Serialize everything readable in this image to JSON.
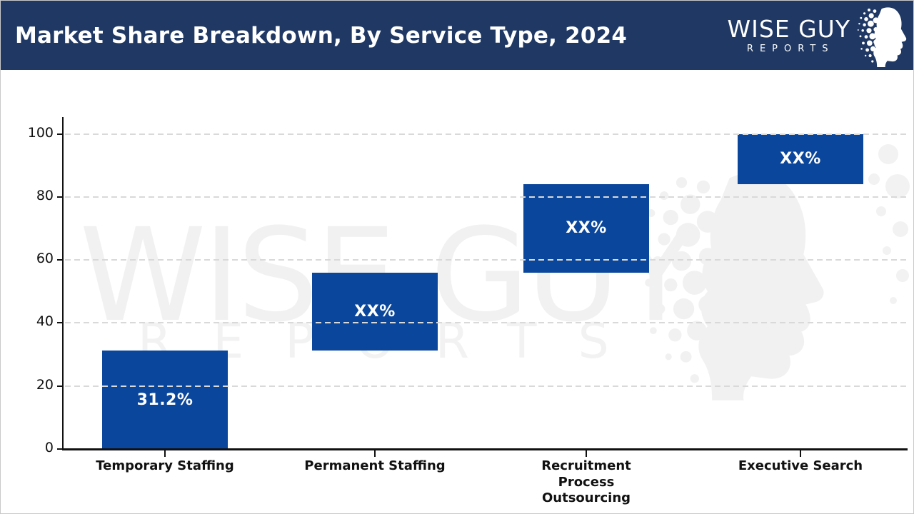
{
  "header": {
    "title": "Market Share Breakdown, By Service Type, 2024",
    "logo": {
      "wordmark": "WISE GUY",
      "subtext": "REPORTS"
    }
  },
  "watermark": {
    "wordmark": "WISE GUY",
    "subtext": "REPORTS"
  },
  "chart_data": {
    "type": "bar",
    "subtype": "waterfall",
    "title": "Market Share Breakdown, By Service Type, 2024",
    "categories": [
      "Temporary Staffing",
      "Permanent Staffing",
      "Recruitment\nProcess\nOutsourcing",
      "Executive Search"
    ],
    "segments": [
      {
        "category": "Temporary Staffing",
        "start": 0,
        "end": 31.2,
        "label": "31.2%"
      },
      {
        "category": "Permanent Staffing",
        "start": 31.2,
        "end": 56,
        "label": "XX%"
      },
      {
        "category": "Recruitment Process Outsourcing",
        "start": 56,
        "end": 84,
        "label": "XX%"
      },
      {
        "category": "Executive Search",
        "start": 84,
        "end": 100,
        "label": "XX%"
      }
    ],
    "values_visible": [
      "31.2%",
      "XX%",
      "XX%",
      "XX%"
    ],
    "xlabel": "",
    "ylabel": "",
    "ylim": [
      0,
      100
    ],
    "yticks": [
      0,
      20,
      40,
      60,
      80,
      100
    ],
    "grid": "horizontal dashed",
    "legend": "none",
    "colors": {
      "bar": "#0a469b",
      "bar_label": "#ffffff",
      "header_bg": "#1f3864",
      "axis": "#111111",
      "gridline": "#d9d9d9",
      "watermark": "#f1f1f1"
    }
  }
}
